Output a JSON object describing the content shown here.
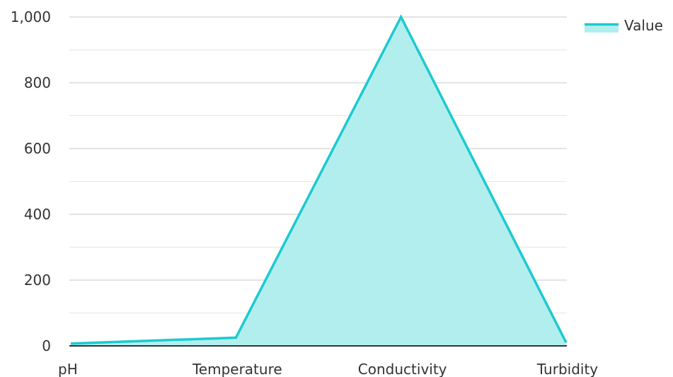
{
  "chart_data": {
    "type": "area",
    "categories": [
      "pH",
      "Temperature",
      "Conductivity",
      "Turbidity"
    ],
    "series": [
      {
        "name": "Value",
        "values": [
          7,
          25,
          1000,
          10
        ]
      }
    ],
    "ylim": [
      0,
      1000
    ],
    "yticks": [
      0,
      200,
      400,
      600,
      800,
      1000
    ],
    "ytick_labels": [
      "0",
      "200",
      "400",
      "600",
      "800",
      "1,000"
    ],
    "grid": true,
    "legend_position": "top-right",
    "colors": {
      "line": "#1ccad0",
      "fill": "#b3eeee",
      "grid_major": "#c8c8c8",
      "grid_minor": "#e6e6e6",
      "axis": "#333333"
    }
  }
}
